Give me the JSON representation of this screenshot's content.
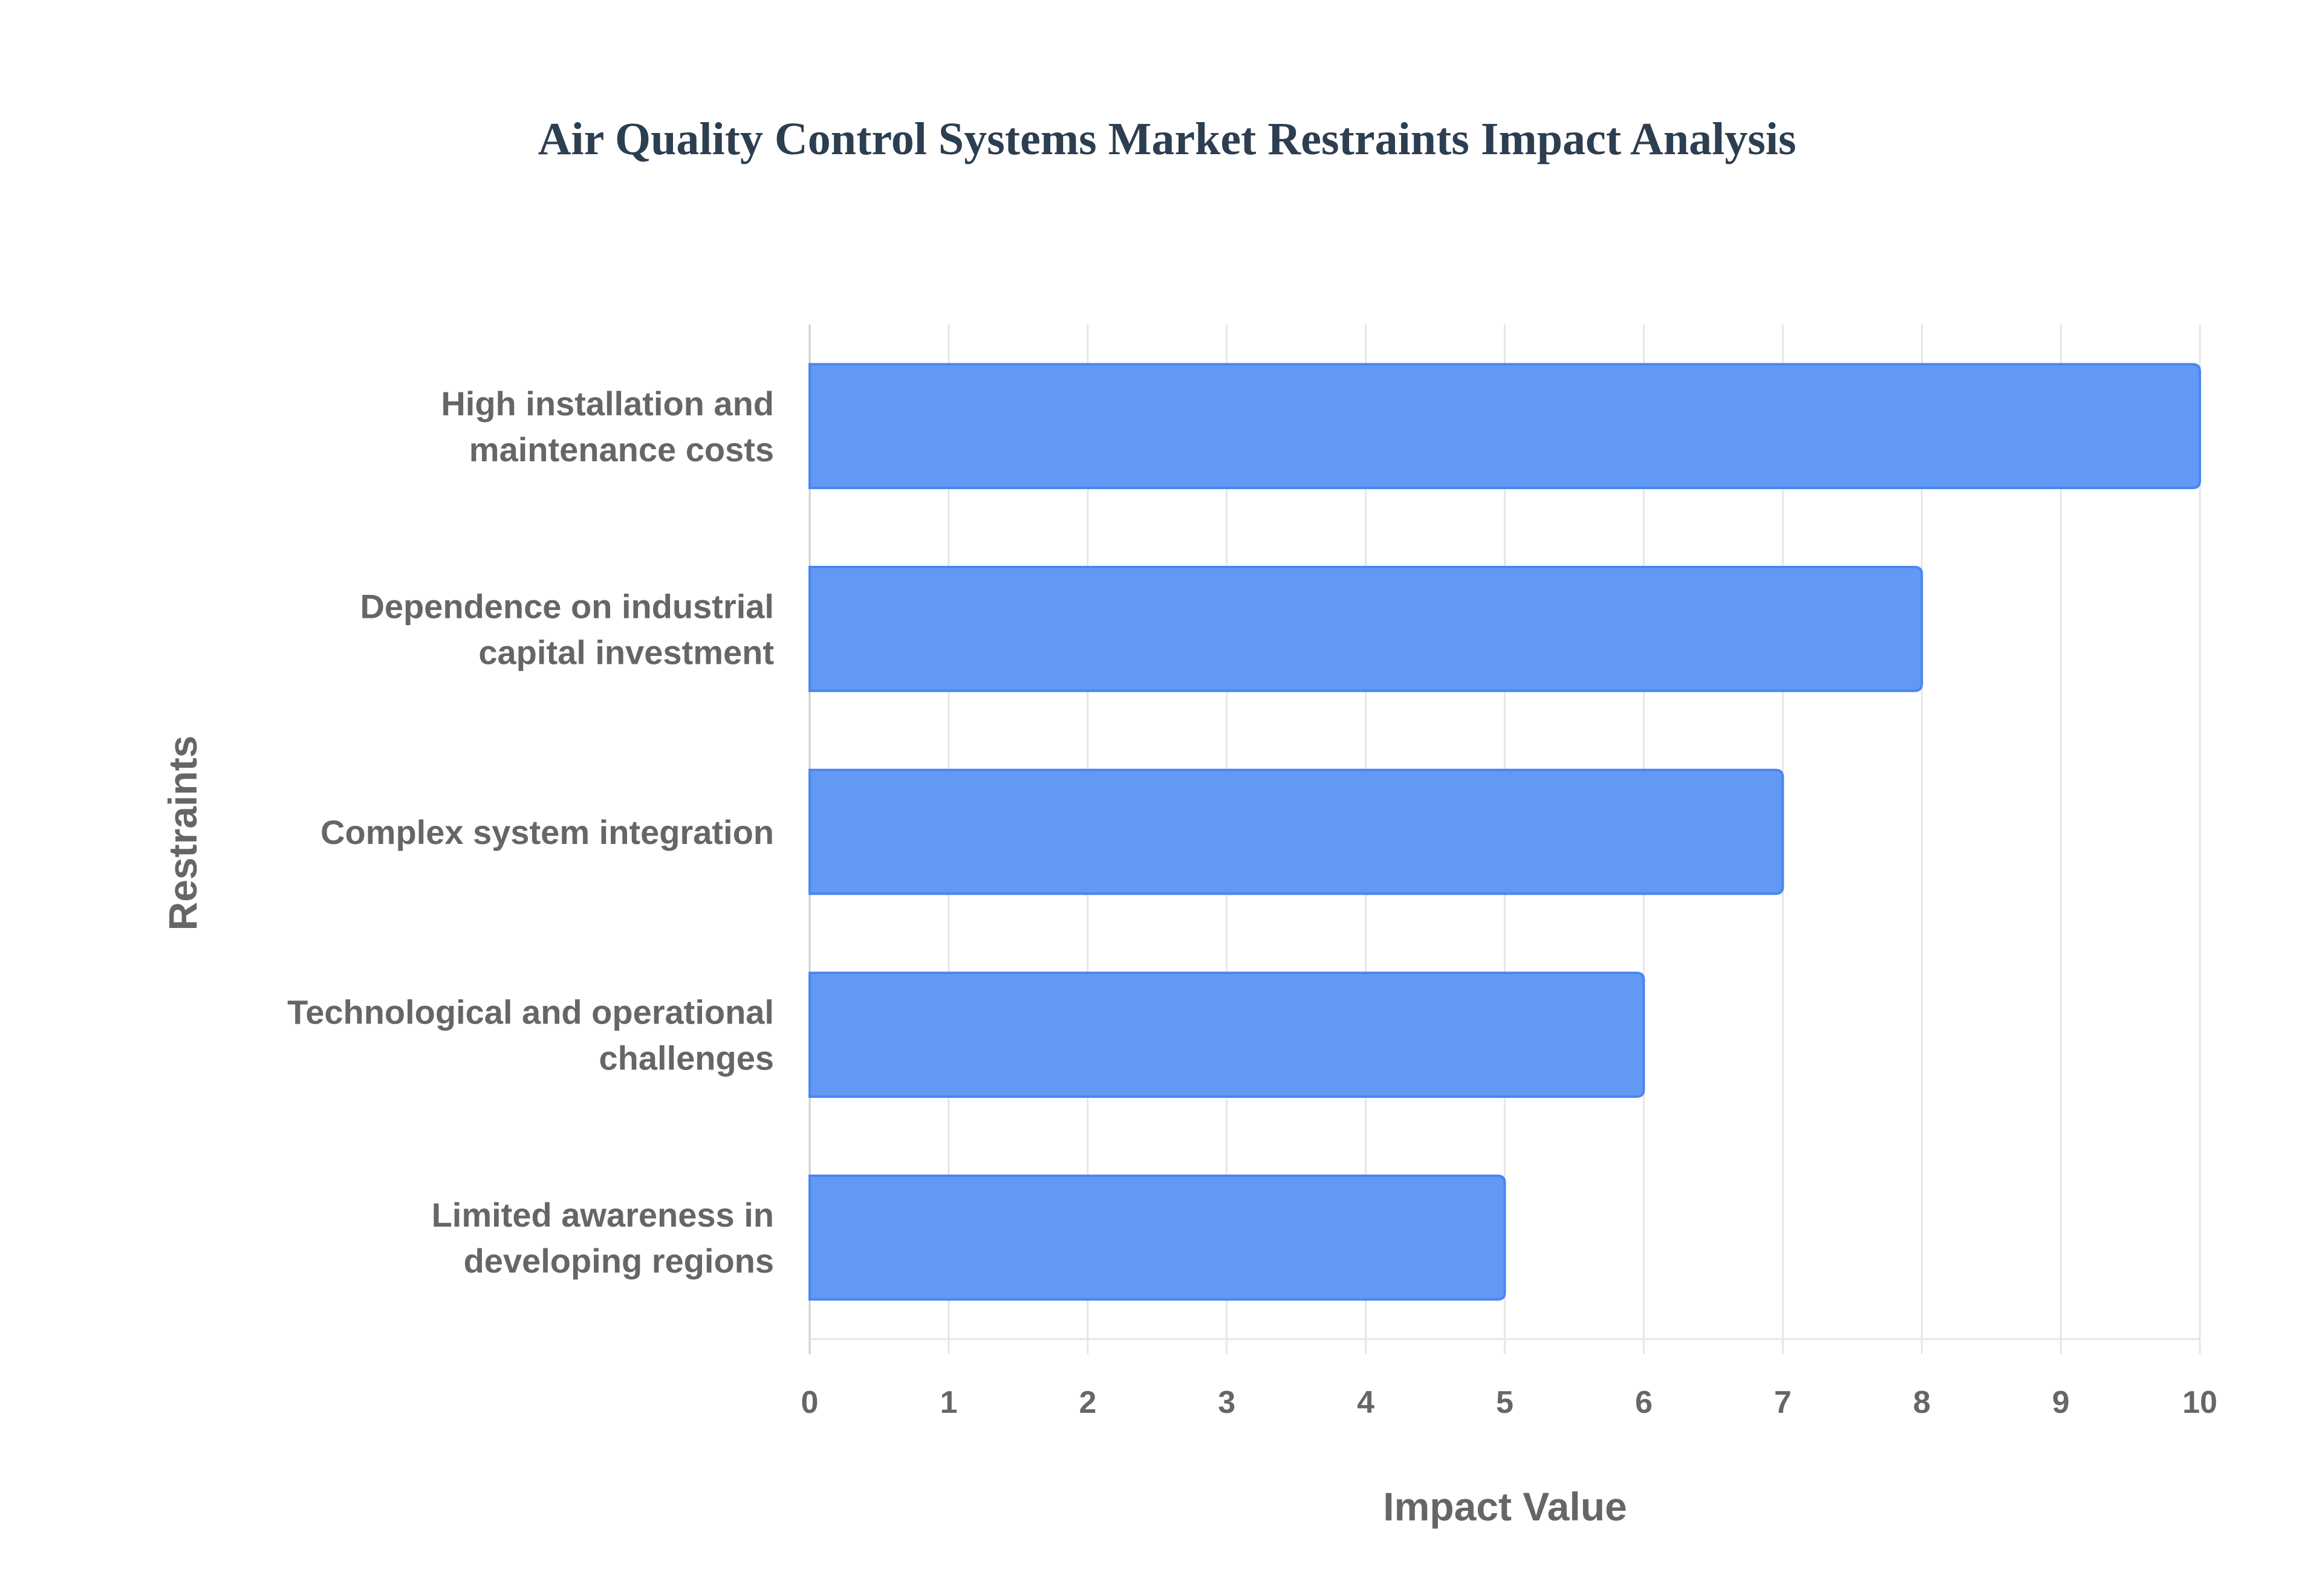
{
  "chart_data": {
    "type": "bar",
    "orientation": "horizontal",
    "title": "Air Quality Control Systems Market Restraints Impact Analysis",
    "xlabel": "Impact Value",
    "ylabel": "Restraints",
    "categories": [
      [
        "High installation and",
        "maintenance costs"
      ],
      [
        "Dependence on industrial",
        "capital investment"
      ],
      [
        "Complex system integration"
      ],
      [
        "Technological and operational",
        "challenges"
      ],
      [
        "Limited awareness in",
        "developing regions"
      ]
    ],
    "values": [
      10,
      8,
      7,
      6,
      5
    ],
    "xlim": [
      0,
      10
    ],
    "xticks": [
      "0",
      "1",
      "2",
      "3",
      "4",
      "5",
      "6",
      "7",
      "8",
      "9",
      "10"
    ],
    "grid": true,
    "legend": "none",
    "colors": {
      "bar_fill": "#6299f5",
      "bar_border": "#4a86ee",
      "grid": "#e6e6e6"
    }
  }
}
